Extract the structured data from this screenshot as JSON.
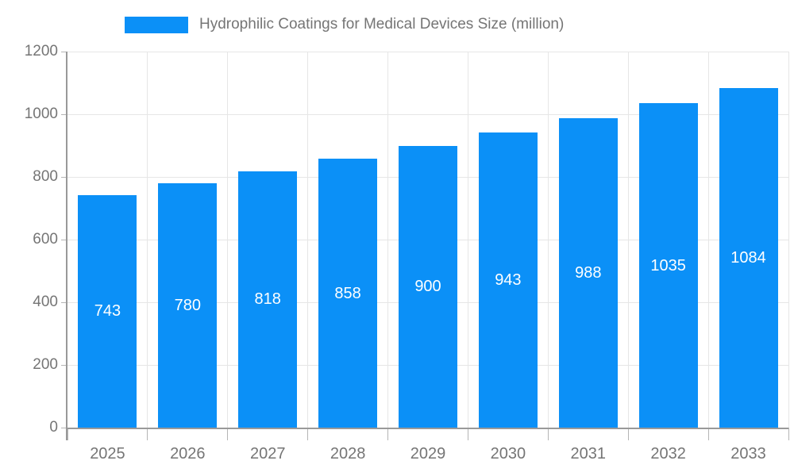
{
  "chart_data": {
    "type": "bar",
    "title": "Hydrophilic Coatings for Medical Devices Size (million)",
    "categories": [
      "2025",
      "2026",
      "2027",
      "2028",
      "2029",
      "2030",
      "2031",
      "2032",
      "2033"
    ],
    "values": [
      743,
      780,
      818,
      858,
      900,
      943,
      988,
      1035,
      1084
    ],
    "xlabel": "",
    "ylabel": "",
    "ylim": [
      0,
      1200
    ],
    "yticks": [
      0,
      200,
      400,
      600,
      800,
      1000,
      1200
    ],
    "grid": true,
    "legend_position": "top",
    "value_labels": "inside-center",
    "colors": {
      "bar": "#0b90f7",
      "value_label": "#ffffff",
      "axis": "#999999",
      "gridline": "#e6e6e6",
      "tick": "#b5b5b5",
      "text": "#757575",
      "background": "#ffffff"
    }
  }
}
